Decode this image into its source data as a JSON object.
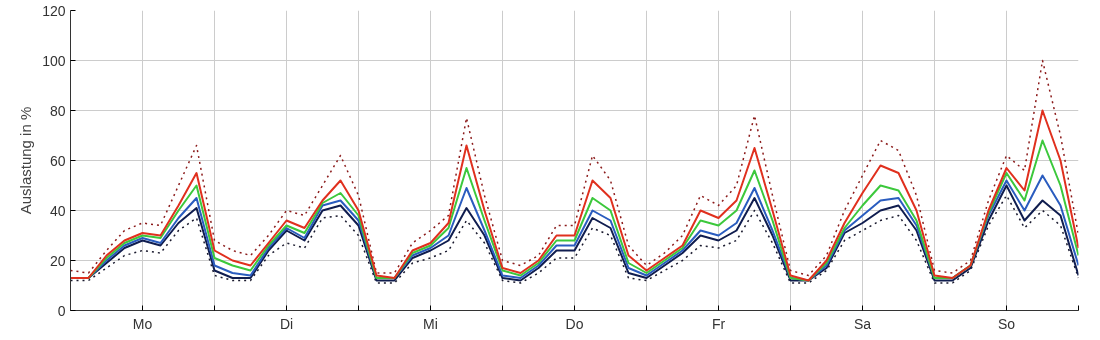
{
  "chart_data": {
    "type": "line",
    "ylabel": "Auslastung in %",
    "categories": [
      null,
      null,
      null,
      null,
      "Mo",
      null,
      null,
      null,
      null,
      null,
      null,
      null,
      "Di",
      null,
      null,
      null,
      null,
      null,
      null,
      null,
      "Mi",
      null,
      null,
      null,
      null,
      null,
      null,
      null,
      "Do",
      null,
      null,
      null,
      null,
      null,
      null,
      null,
      "Fr",
      null,
      null,
      null,
      null,
      null,
      null,
      null,
      "Sa",
      null,
      null,
      null,
      null,
      null,
      null,
      null,
      "So",
      null,
      null,
      null,
      null
    ],
    "ylim": [
      0,
      120
    ],
    "yticks": [
      0,
      20,
      40,
      60,
      80,
      100,
      120
    ],
    "grid": true,
    "series": [
      {
        "color": "#8b1a1a",
        "line_style": "dotted",
        "values": [
          16,
          15,
          24,
          32,
          35,
          34,
          50,
          66,
          28,
          24,
          22,
          30,
          40,
          38,
          50,
          62,
          46,
          15,
          15,
          27,
          32,
          38,
          77,
          46,
          20,
          18,
          22,
          34,
          34,
          62,
          52,
          26,
          18,
          23,
          30,
          46,
          42,
          50,
          78,
          46,
          16,
          14,
          22,
          40,
          54,
          68,
          64,
          46,
          16,
          15,
          20,
          44,
          62,
          56,
          100,
          70,
          30
        ]
      },
      {
        "color": "#1a1a2e",
        "line_style": "dotted",
        "values": [
          12,
          12,
          17,
          22,
          24,
          23,
          32,
          37,
          14,
          12,
          12,
          22,
          27,
          25,
          37,
          38,
          30,
          11,
          11,
          19,
          21,
          24,
          36,
          27,
          12,
          11,
          15,
          21,
          21,
          33,
          30,
          13,
          12,
          16,
          20,
          26,
          25,
          28,
          40,
          27,
          11,
          11,
          16,
          28,
          32,
          36,
          38,
          28,
          11,
          11,
          16,
          34,
          46,
          33,
          40,
          34,
          13
        ]
      },
      {
        "color": "#101d4f",
        "line_style": "solid",
        "values": [
          13,
          13,
          19,
          25,
          28,
          26,
          35,
          41,
          16,
          13,
          13,
          24,
          32,
          28,
          40,
          42,
          34,
          12,
          12,
          21,
          24,
          28,
          41,
          30,
          13,
          12,
          17,
          24,
          24,
          37,
          33,
          15,
          13,
          18,
          23,
          30,
          28,
          32,
          45,
          30,
          12,
          12,
          17,
          31,
          35,
          40,
          42,
          32,
          12,
          12,
          17,
          36,
          50,
          36,
          44,
          38,
          14
        ]
      },
      {
        "color": "#2a5cbf",
        "line_style": "solid",
        "values": [
          13,
          13,
          20,
          26,
          29,
          27,
          37,
          45,
          18,
          15,
          14,
          25,
          33,
          29,
          42,
          44,
          36,
          13,
          13,
          22,
          25,
          30,
          49,
          32,
          14,
          13,
          18,
          26,
          26,
          40,
          36,
          17,
          14,
          19,
          24,
          32,
          30,
          35,
          49,
          32,
          13,
          12,
          18,
          32,
          38,
          44,
          45,
          34,
          13,
          13,
          18,
          38,
          52,
          40,
          54,
          42,
          18
        ]
      },
      {
        "color": "#3cc83c",
        "line_style": "solid",
        "values": [
          13,
          13,
          21,
          27,
          30,
          29,
          40,
          50,
          21,
          18,
          16,
          26,
          34,
          31,
          43,
          47,
          38,
          13,
          13,
          23,
          26,
          33,
          57,
          36,
          16,
          14,
          19,
          28,
          28,
          45,
          40,
          19,
          15,
          20,
          25,
          36,
          34,
          40,
          56,
          36,
          13,
          12,
          19,
          33,
          42,
          50,
          48,
          36,
          13,
          13,
          18,
          39,
          55,
          44,
          68,
          50,
          22
        ]
      },
      {
        "color": "#e0301e",
        "line_style": "solid",
        "values": [
          13,
          13,
          22,
          28,
          31,
          30,
          42,
          55,
          24,
          20,
          18,
          27,
          36,
          33,
          44,
          52,
          40,
          14,
          13,
          24,
          27,
          35,
          66,
          40,
          17,
          15,
          20,
          30,
          30,
          52,
          45,
          22,
          16,
          21,
          26,
          40,
          37,
          44,
          65,
          40,
          14,
          12,
          20,
          35,
          47,
          58,
          55,
          40,
          14,
          13,
          18,
          40,
          57,
          48,
          80,
          60,
          25
        ]
      }
    ]
  }
}
